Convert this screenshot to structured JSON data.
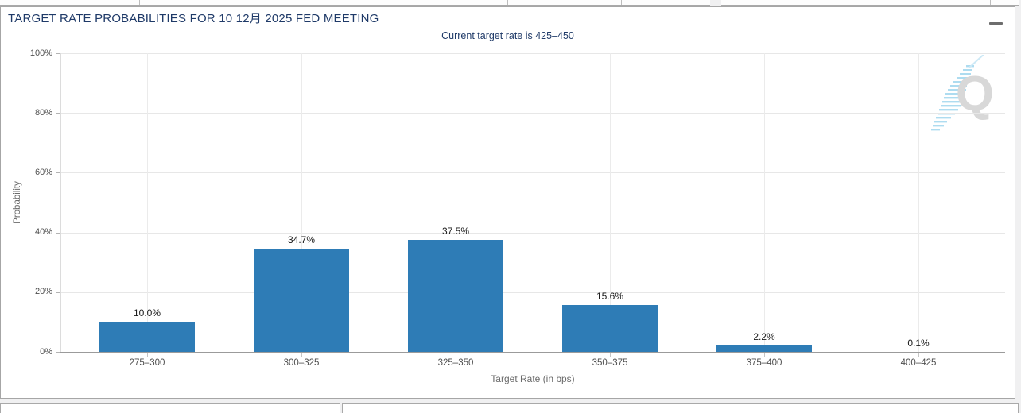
{
  "header": {
    "title": "TARGET RATE PROBABILITIES FOR 10 12月 2025 FED MEETING",
    "subtitle": "Current target rate is 425–450"
  },
  "watermark": {
    "letter": "Q"
  },
  "chart_data": {
    "type": "bar",
    "title": "TARGET RATE PROBABILITIES FOR 10 12月 2025 FED MEETING",
    "subtitle": "Current target rate is 425–450",
    "categories": [
      "275–300",
      "300–325",
      "325–350",
      "350–375",
      "375–400",
      "400–425"
    ],
    "values": [
      10.0,
      34.7,
      37.5,
      15.6,
      2.2,
      0.1
    ],
    "bar_labels": [
      "10.0%",
      "34.7%",
      "37.5%",
      "15.6%",
      "2.2%",
      "0.1%"
    ],
    "xlabel": "Target Rate (in bps)",
    "ylabel": "Probability",
    "ylim": [
      0,
      100
    ],
    "yticks": [
      0,
      20,
      40,
      60,
      80,
      100
    ],
    "ytick_labels": [
      "0%",
      "20%",
      "40%",
      "60%",
      "80%",
      "100%"
    ],
    "grid": true,
    "legend": false,
    "bar_color": "#2e7cb6"
  },
  "colors": {
    "bar": "#2e7cb6",
    "title_text": "#1f3a68",
    "axis_text": "#4f4f4f",
    "grid_line": "#e7e7e7",
    "axis_line": "#9b9b9b",
    "panel_border": "#a6a6a6",
    "page_background": "#f0f0f1"
  }
}
